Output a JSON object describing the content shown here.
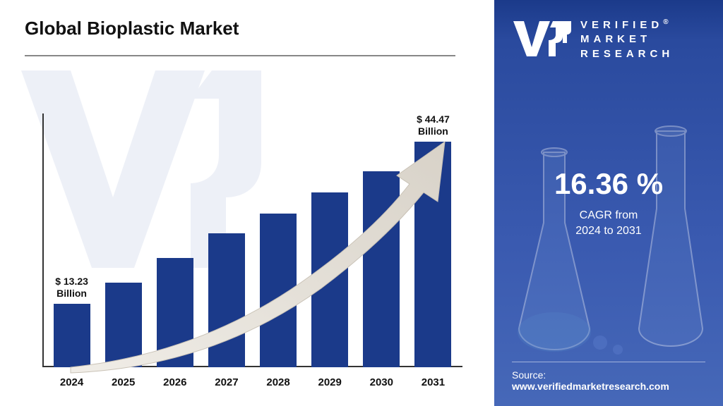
{
  "title": "Global Bioplastic Market",
  "chart": {
    "type": "bar",
    "categories": [
      "2024",
      "2025",
      "2026",
      "2027",
      "2028",
      "2029",
      "2030",
      "2031"
    ],
    "values": [
      90,
      120,
      155,
      190,
      218,
      248,
      278,
      320
    ],
    "bar_color": "#1b3a8a",
    "first_bar_label_line1": "$ 13.23",
    "first_bar_label_line2": "Billion",
    "last_bar_label_line1": "$ 44.47",
    "last_bar_label_line2": "Billion",
    "axis_color": "#333333",
    "background_color": "#ffffff",
    "arrow_fill": "#e6e2dc",
    "arrow_stroke": "#bfb9b0"
  },
  "right": {
    "brand_line1": "VERIFIED",
    "brand_line2": "MARKET",
    "brand_line3": "RESEARCH",
    "cagr_value": "16.36 %",
    "cagr_label_line1": "CAGR from",
    "cagr_label_line2": "2024 to 2031",
    "source_label": "Source:",
    "source_url": "www.verifiedmarketresearch.com",
    "panel_bg": "#2a4a9e"
  }
}
